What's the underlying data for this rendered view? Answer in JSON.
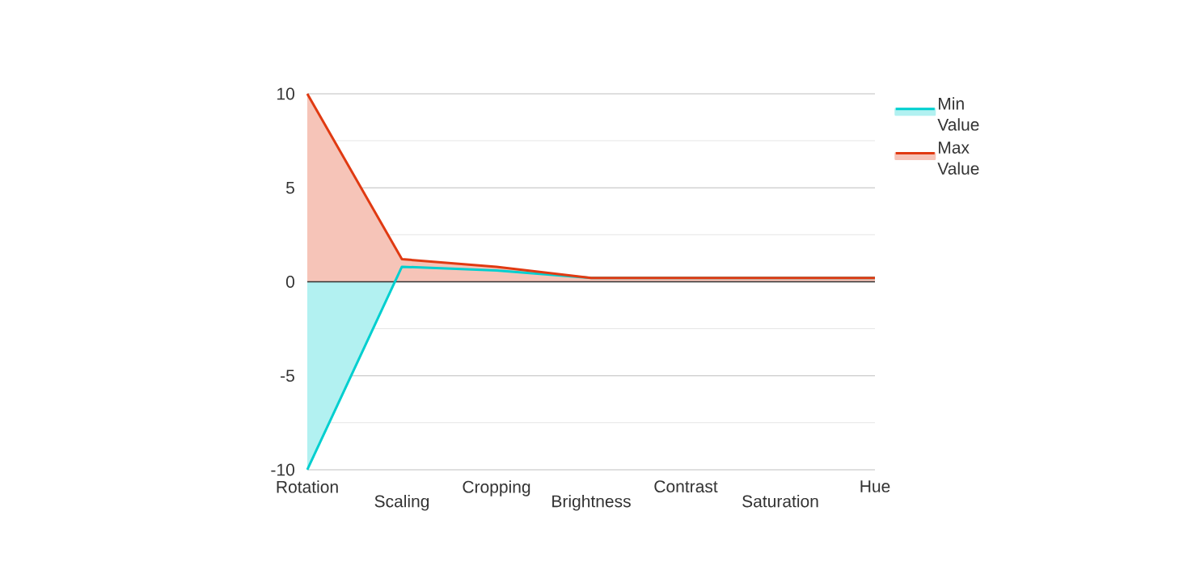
{
  "chart_data": {
    "type": "area",
    "categories": [
      "Rotation",
      "Scaling",
      "Cropping",
      "Brightness",
      "Contrast",
      "Saturation",
      "Hue"
    ],
    "series": [
      {
        "name": "Min Value",
        "color": "#00cfcf",
        "values": [
          -10,
          0.8,
          0.6,
          0.2,
          0.2,
          0.2,
          0.2
        ]
      },
      {
        "name": "Max Value",
        "color": "#e03a12",
        "values": [
          10,
          1.2,
          0.8,
          0.2,
          0.2,
          0.2,
          0.2
        ]
      }
    ],
    "ylim": [
      -10,
      10
    ],
    "yticks": [
      -10,
      {
        "value": -7.5,
        "label": null
      },
      -5,
      {
        "value": -2.5,
        "label": null
      },
      0,
      {
        "value": 2.5,
        "label": null
      },
      5,
      {
        "value": 7.5,
        "label": null
      },
      10
    ],
    "grid": "y",
    "legend": "top right",
    "marker": "none",
    "line_style": "solid"
  }
}
